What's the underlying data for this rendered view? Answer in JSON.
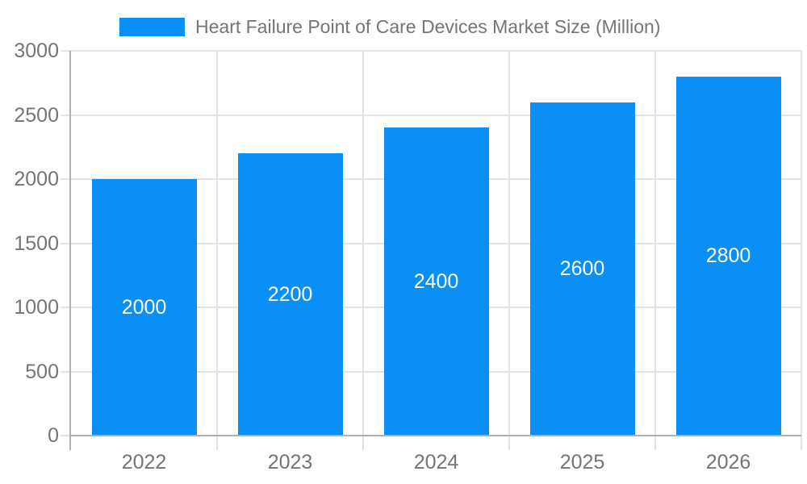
{
  "legend": {
    "label": "Heart Failure Point of Care Devices Market Size (Million)"
  },
  "chart_data": {
    "type": "bar",
    "title": "Heart Failure Point of Care Devices Market Size (Million)",
    "categories": [
      "2022",
      "2023",
      "2024",
      "2025",
      "2026"
    ],
    "series": [
      {
        "name": "Heart Failure Point of Care Devices Market Size (Million)",
        "values": [
          2000,
          2200,
          2400,
          2600,
          2800
        ]
      }
    ],
    "value_labels": [
      "2000",
      "2200",
      "2400",
      "2600",
      "2800"
    ],
    "ylim": [
      0,
      3000
    ],
    "yticks": [
      0,
      500,
      1000,
      1500,
      2000,
      2500,
      3000
    ],
    "grid": true,
    "legend_position": "top",
    "xlabel": "",
    "ylabel": ""
  },
  "colors": {
    "bar": "#0a8ff7",
    "label_text": "#757575",
    "gridline": "#e3e3e3",
    "axis": "#b0b0b0",
    "value_label": "#ffffff",
    "background": "#ffffff"
  }
}
